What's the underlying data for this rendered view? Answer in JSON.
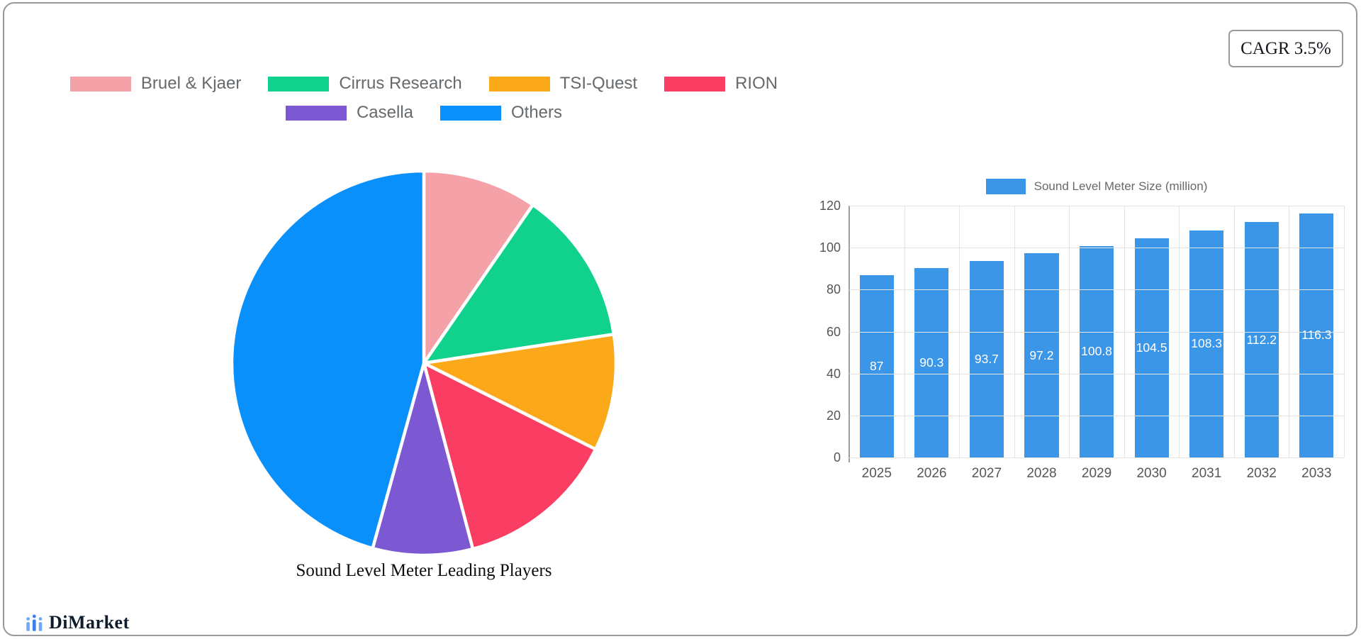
{
  "cagr_label": "CAGR 3.5%",
  "brand": {
    "name": "DiMarket"
  },
  "chart_data": [
    {
      "type": "pie",
      "title": "Sound Level Meter Leading Players",
      "labels": [
        "Bruel & Kjaer",
        "Cirrus Research",
        "TSI-Quest",
        "RION",
        "Casella",
        "Others"
      ],
      "values": [
        9.6,
        13.0,
        9.8,
        13.5,
        8.4,
        45.7
      ],
      "unit": "percent-share-estimated",
      "colors": [
        "#F4A1A7",
        "#10D28C",
        "#FBA819",
        "#FA3E63",
        "#7C58D3",
        "#0A90FA"
      ],
      "legend_position": "top",
      "legend_rows": [
        [
          0,
          1,
          2,
          3
        ],
        [
          4,
          5
        ]
      ],
      "start_angle_deg": 0,
      "direction": "clockwise",
      "slice_gap_color": "#ffffff"
    },
    {
      "type": "bar",
      "series_name": "Sound Level Meter Size (million)",
      "categories": [
        "2025",
        "2026",
        "2027",
        "2028",
        "2029",
        "2030",
        "2031",
        "2032",
        "2033"
      ],
      "values": [
        87,
        90.3,
        93.7,
        97.2,
        100.8,
        104.5,
        108.3,
        112.2,
        116.3
      ],
      "value_labels": [
        "87",
        "90.3",
        "93.7",
        "97.2",
        "100.8",
        "104.5",
        "108.3",
        "112.2",
        "116.3"
      ],
      "ylim": [
        0,
        120
      ],
      "yticks": [
        0,
        20,
        40,
        60,
        80,
        100,
        120
      ],
      "bar_color": "#3B96E8",
      "grid": true,
      "legend_position": "top",
      "value_label_style": "white-inside-center"
    }
  ]
}
